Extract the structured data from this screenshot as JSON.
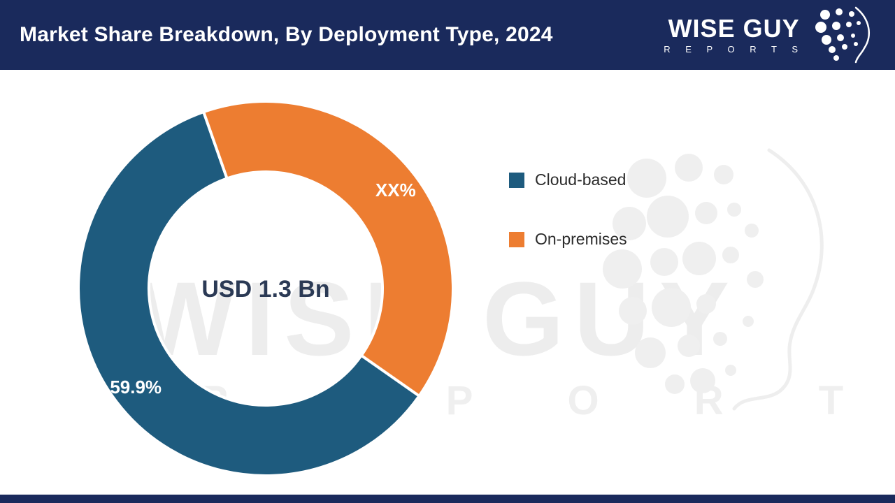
{
  "header": {
    "title": "Market Share Breakdown, By Deployment Type, 2024",
    "logo": {
      "name": "WISE GUY",
      "tagline": "R E P O R T S"
    }
  },
  "watermark": {
    "line1": "WISE GUY",
    "line2": "R E P O R T S"
  },
  "chart_data": {
    "type": "pie",
    "subtype": "donut",
    "title": "Market Share Breakdown, By Deployment Type, 2024",
    "center_label": "USD 1.3 Bn",
    "categories": [
      "Cloud-based",
      "On-premises"
    ],
    "values": [
      59.9,
      40.1
    ],
    "slice_labels": [
      "59.9%",
      "XX%"
    ],
    "colors": [
      "#1e5b7e",
      "#ed7d31"
    ],
    "legend_position": "right",
    "start_angle_deg": 35
  },
  "colors": {
    "header_bg": "#1a2a5c",
    "footer_bg": "#1a2a5c",
    "watermark": "#ededed",
    "slice_label_text": "#ffffff",
    "center_label_text": "#2b3a55"
  }
}
